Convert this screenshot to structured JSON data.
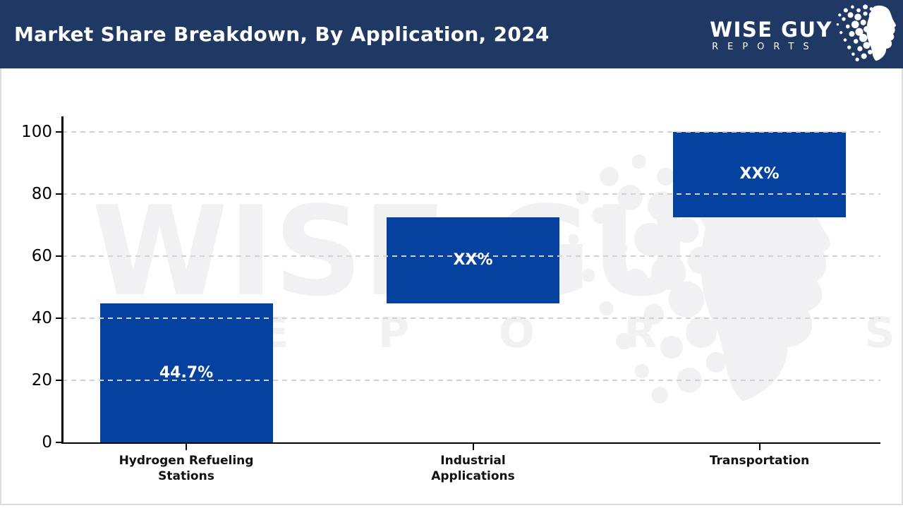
{
  "header": {
    "title": "Market Share Breakdown, By Application, 2024",
    "logo": {
      "wordmark": "WISE GUY",
      "subtext": "REPORTS"
    }
  },
  "watermark": {
    "line1": "WISE GUY",
    "line2": "R E P O R T S"
  },
  "chart_data": {
    "type": "bar",
    "subtype": "floating-waterfall",
    "title": "Market Share Breakdown, By Application, 2024",
    "categories": [
      "Hydrogen Refueling Stations",
      "Industrial Applications",
      "Transportation"
    ],
    "category_lines": [
      [
        "Hydrogen Refueling",
        "Stations"
      ],
      [
        "Industrial",
        "Applications"
      ],
      [
        "Transportation"
      ]
    ],
    "segments": [
      {
        "category": "Hydrogen Refueling Stations",
        "start": 0,
        "end": 44.7,
        "label": "44.7%"
      },
      {
        "category": "Industrial Applications",
        "start": 44.7,
        "end": 72.6,
        "label": "XX%"
      },
      {
        "category": "Transportation",
        "start": 72.6,
        "end": 100,
        "label": "XX%"
      }
    ],
    "yticks": [
      0,
      20,
      40,
      60,
      80,
      100
    ],
    "ylim": [
      0,
      104
    ],
    "xlabel": "",
    "ylabel": "",
    "grid": "horizontal-dashed-over-bars",
    "legend": "none",
    "bar_color": "#05419e",
    "bar_label_color": "#ffffff",
    "axis_color": "#000000",
    "gridline_color": "#d2d2d2",
    "header_color": "#1f3864",
    "watermark_color": "#f1f1f4"
  }
}
